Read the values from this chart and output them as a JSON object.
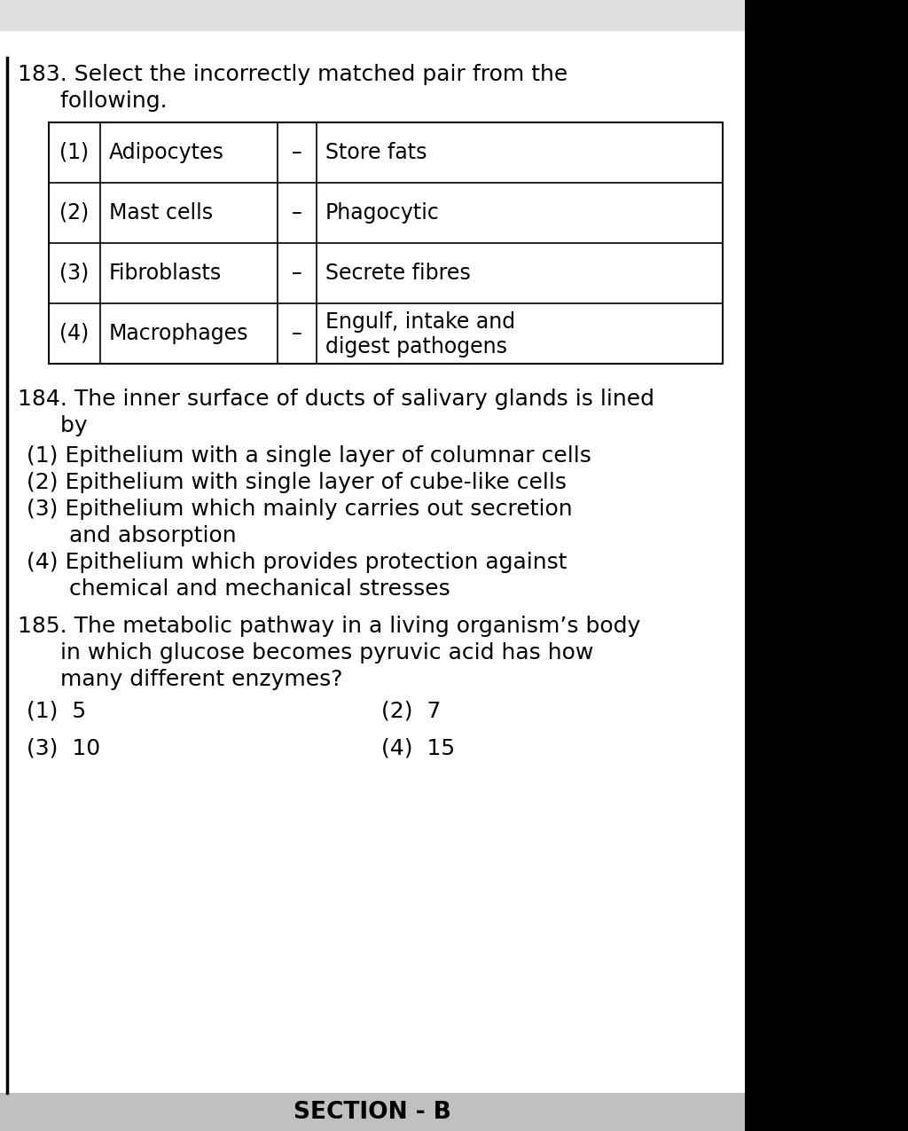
{
  "bg_top": "#e8e8e8",
  "bg_white": "#ffffff",
  "bg_black": "#000000",
  "text_color": "#000000",
  "section_bg": "#c8c8c8",
  "q183_line1": "183. Select the incorrectly matched pair from the",
  "q183_line2": "      following.",
  "table_rows": [
    [
      "(1)",
      "Adipocytes",
      "–",
      "Store fats"
    ],
    [
      "(2)",
      "Mast cells",
      "–",
      "Phagocytic"
    ],
    [
      "(3)",
      "Fibroblasts",
      "–",
      "Secrete fibres"
    ],
    [
      "(4)",
      "Macrophages",
      "–",
      "Engulf, intake and\ndigest pathogens"
    ]
  ],
  "q184_line1": "184. The inner surface of ducts of salivary glands is lined",
  "q184_line2": "      by",
  "q184_options": [
    [
      "(1) Epithelium with a single layer of columnar cells"
    ],
    [
      "(2) Epithelium with single layer of cube-like cells"
    ],
    [
      "(3) Epithelium which mainly carries out secretion",
      "      and absorption"
    ],
    [
      "(4) Epithelium which provides protection against",
      "      chemical and mechanical stresses"
    ]
  ],
  "q185_line1": "185. The metabolic pathway in a living organism’s body",
  "q185_line2": "      in which glucose becomes pyruvic acid has how",
  "q185_line3": "      many different enzymes?",
  "q185_opts_left": [
    "(1)  5",
    "(3)  10"
  ],
  "q185_opts_right": [
    "(2)  7",
    "(4)  15"
  ],
  "section_b": "SECTION - B",
  "font_size": 18,
  "font_size_section": 19
}
